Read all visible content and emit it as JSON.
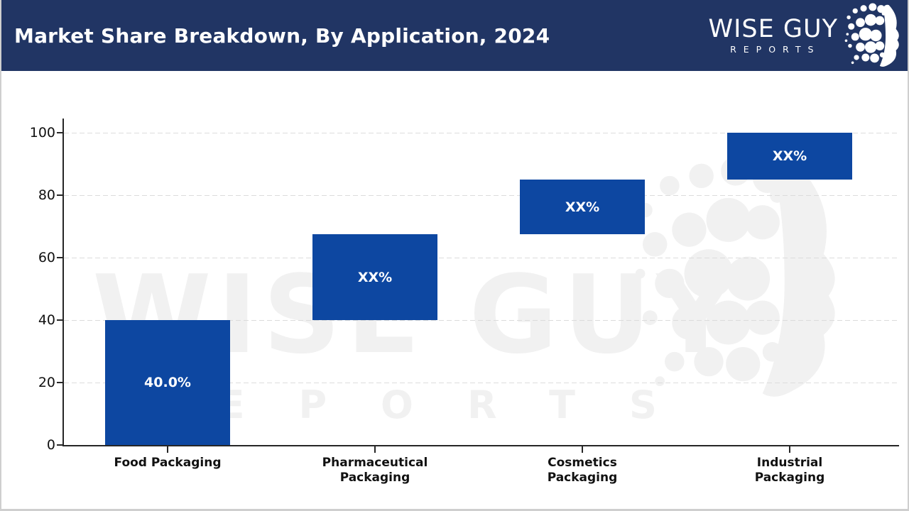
{
  "header": {
    "title": "Market Share Breakdown, By Application, 2024",
    "brand": {
      "line1": "WISE GUY",
      "line2": "REPORTS"
    }
  },
  "watermark": {
    "line1": "WISE GUY",
    "line2": "REPORTS"
  },
  "colors": {
    "header_bg": "#213564",
    "bar": "#0d47a1",
    "grid": "#dcdcdc",
    "axis": "#262626",
    "value_label": "#ffffff",
    "watermark": "#f1f1f1"
  },
  "chart_data": {
    "type": "bar",
    "subtype": "waterfall",
    "title": "Market Share Breakdown, By Application, 2024",
    "categories": [
      "Food Packaging",
      "Pharmaceutical\nPackaging",
      "Cosmetics\nPackaging",
      "Industrial\nPackaging"
    ],
    "segments": [
      {
        "category": "Food Packaging",
        "start": 0,
        "end": 40,
        "value": 40.0,
        "label": "40.0%"
      },
      {
        "category": "Pharmaceutical Packaging",
        "start": 40,
        "end": 67.5,
        "value": 27.5,
        "label": "XX%"
      },
      {
        "category": "Cosmetics Packaging",
        "start": 67.5,
        "end": 85,
        "value": 17.5,
        "label": "XX%"
      },
      {
        "category": "Industrial Packaging",
        "start": 85,
        "end": 100,
        "value": 15.0,
        "label": "XX%"
      }
    ],
    "yticks": [
      0,
      20,
      40,
      60,
      80,
      100
    ],
    "ylim": [
      0,
      100
    ],
    "xlabel": "",
    "ylabel": "",
    "grid": "horizontal-dashed",
    "legend": "none"
  }
}
